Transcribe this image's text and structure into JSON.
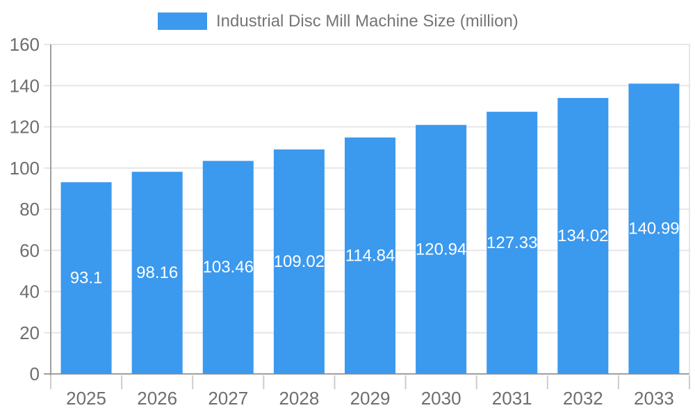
{
  "legend": {
    "label": "Industrial Disc Mill Machine Size (million)"
  },
  "chart_data": {
    "type": "bar",
    "title": "Industrial Disc Mill Machine Size (million)",
    "series_name": "Industrial Disc Mill Machine Size (million)",
    "categories": [
      "2025",
      "2026",
      "2027",
      "2028",
      "2029",
      "2030",
      "2031",
      "2032",
      "2033"
    ],
    "values": [
      93.1,
      98.16,
      103.46,
      109.02,
      114.84,
      120.94,
      127.33,
      134.02,
      140.99
    ],
    "value_labels": [
      "93.1",
      "98.16",
      "103.46",
      "109.02",
      "114.84",
      "120.94",
      "127.33",
      "134.02",
      "140.99"
    ],
    "xlabel": "",
    "ylabel": "",
    "ylim": [
      0,
      160
    ],
    "ytick_step": 20,
    "yticks": [
      0,
      20,
      40,
      60,
      80,
      100,
      120,
      140,
      160
    ],
    "grid": true,
    "legend_position": "top",
    "value_label_position": "center-inside",
    "colors": {
      "bar": "#3B99EE",
      "grid": "#E6E6E6",
      "axis": "#9E9E9E",
      "tick": "#CCCCCC",
      "axis_text": "#6E6E6E",
      "legend_text": "#757575",
      "value_label": "#FFFFFF",
      "background": "#FFFFFF"
    }
  }
}
